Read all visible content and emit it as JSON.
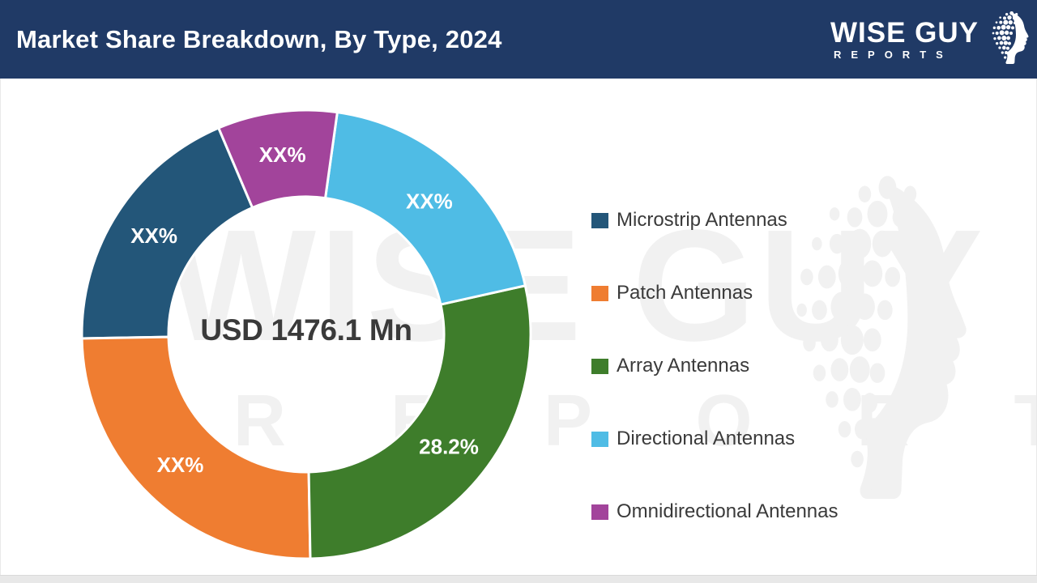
{
  "header": {
    "title": "Market Share Breakdown, By Type, 2024",
    "logo": {
      "line1": "WISE GUY",
      "line2": "REPORTS"
    }
  },
  "center_label": "USD 1476.1 Mn",
  "watermark": {
    "line1": "WISE GUY",
    "line2": "R E P O R T S"
  },
  "colors": {
    "header_bg": "#203a66",
    "title_text": "#ffffff",
    "center_text": "#3a3a3a",
    "legend_text": "#3a3a3a",
    "slice_label": "#ffffff",
    "watermark": "#f1f1f1",
    "footer_bar": "#e8e8e8"
  },
  "chart_data": {
    "type": "pie",
    "donut": true,
    "title": "Market Share Breakdown, By Type, 2024",
    "center_label": "USD 1476.1 Mn",
    "legend_position": "right",
    "start_angle_deg": 113,
    "direction": "counterclockwise",
    "note": "Values marked XX% are masked in the source image; value_pct for those slices is estimated from arc angles.",
    "slices": [
      {
        "label": "Microstrip Antennas",
        "display_label": "XX%",
        "value_pct": 18.9,
        "masked": true,
        "color": "#235679"
      },
      {
        "label": "Patch Antennas",
        "display_label": "XX%",
        "value_pct": 25.0,
        "masked": true,
        "color": "#ef7d31"
      },
      {
        "label": "Array Antennas",
        "display_label": "28.2%",
        "value_pct": 28.2,
        "masked": false,
        "color": "#3e7d2b"
      },
      {
        "label": "Directional Antennas",
        "display_label": "XX%",
        "value_pct": 19.3,
        "masked": true,
        "color": "#4fbce5"
      },
      {
        "label": "Omnidirectional Antennas",
        "display_label": "XX%",
        "value_pct": 8.6,
        "masked": true,
        "color": "#a2449b"
      }
    ]
  }
}
